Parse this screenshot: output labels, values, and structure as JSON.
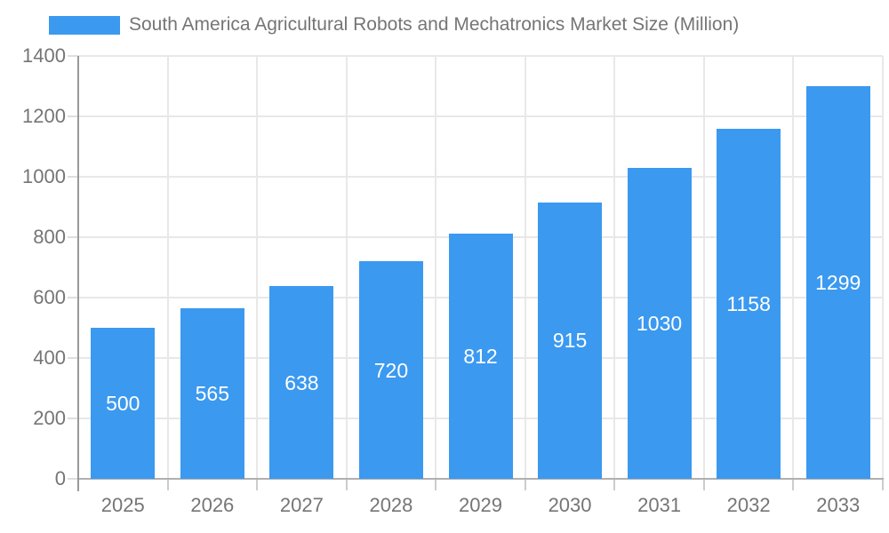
{
  "legend": {
    "swatch_color": "#3b99f0"
  },
  "chart_data": {
    "type": "bar",
    "title": "South America Agricultural Robots and Mechatronics Market Size (Million)",
    "categories": [
      "2025",
      "2026",
      "2027",
      "2028",
      "2029",
      "2030",
      "2031",
      "2032",
      "2033"
    ],
    "values": [
      500,
      565,
      638,
      720,
      812,
      915,
      1030,
      1158,
      1299
    ],
    "xlabel": "",
    "ylabel": "",
    "ylim": [
      0,
      1400
    ],
    "ytick_interval": 200,
    "yticks": [
      0,
      200,
      400,
      600,
      800,
      1000,
      1200,
      1400
    ],
    "grid": true,
    "legend_position": "top",
    "bar_color": "#3b99f0",
    "value_label_color": "#ffffff",
    "axis_label_color": "#757575",
    "grid_color": "#e8e8e8",
    "axis_line_color": "#b0b0b0"
  }
}
